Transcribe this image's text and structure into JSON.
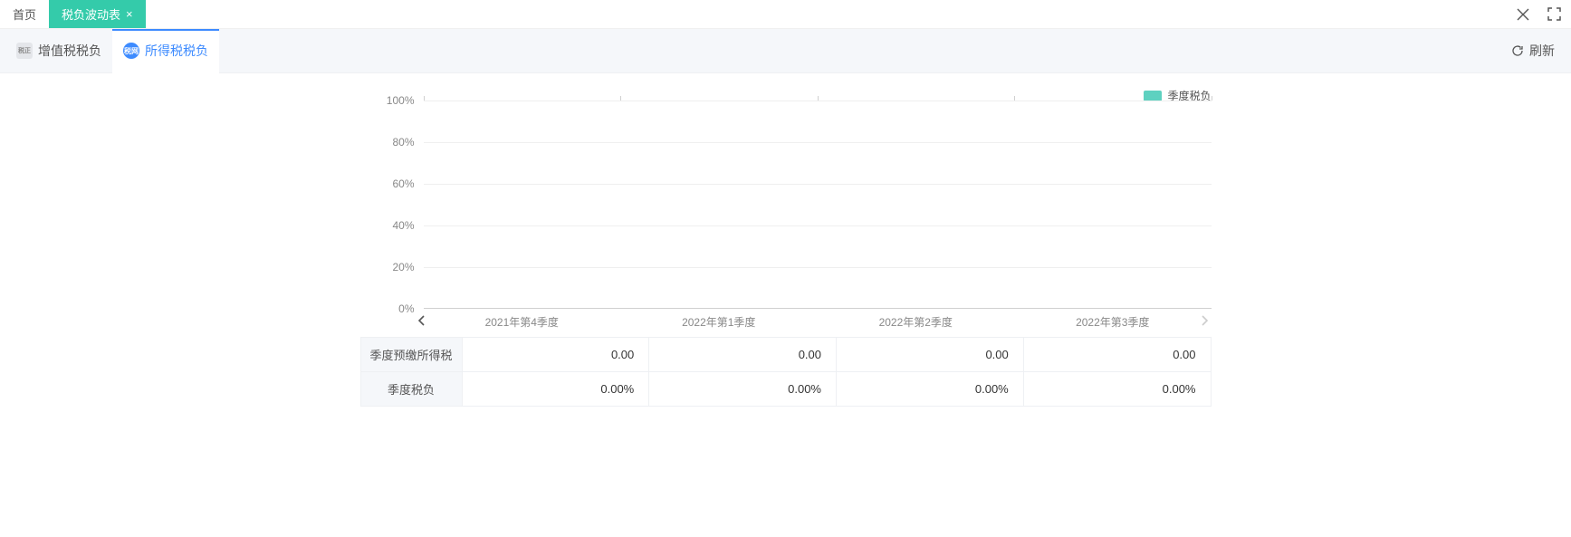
{
  "tabs": {
    "home_label": "首页",
    "active_label": "税负波动表",
    "active_bg": "#34cbaa"
  },
  "toolbar": {
    "sub_tabs": [
      {
        "icon_text": "税正",
        "label": "增值税税负"
      },
      {
        "icon_text": "税网",
        "label": "所得税税负"
      }
    ],
    "active_sub_tab_index": 1,
    "refresh_label": "刷新"
  },
  "chart": {
    "type": "bar",
    "legend_label": "季度税负",
    "legend_swatch_color": "#5ed1c0",
    "categories": [
      "2021年第4季度",
      "2022年第1季度",
      "2022年第2季度",
      "2022年第3季度"
    ],
    "values": [
      0,
      0,
      0,
      0
    ],
    "y_ticks": [
      0,
      20,
      40,
      60,
      80,
      100
    ],
    "y_tick_suffix": "%",
    "ylim": [
      0,
      100
    ],
    "grid_color": "#efefef",
    "axis_color": "#d0d0d0",
    "label_color": "#888888",
    "label_fontsize": 12
  },
  "table": {
    "row_headers": [
      "季度预缴所得税",
      "季度税负"
    ],
    "rows": [
      [
        "0.00",
        "0.00",
        "0.00",
        "0.00"
      ],
      [
        "0.00%",
        "0.00%",
        "0.00%",
        "0.00%"
      ]
    ]
  }
}
